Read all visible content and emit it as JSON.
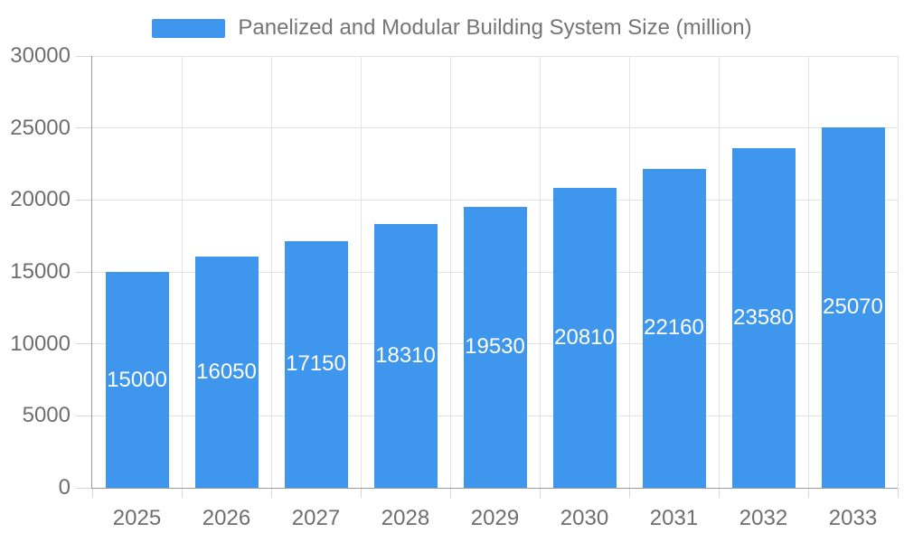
{
  "chart_data": {
    "type": "bar",
    "series_name": "Panelized and Modular Building System Size (million)",
    "categories": [
      "2025",
      "2026",
      "2027",
      "2028",
      "2029",
      "2030",
      "2031",
      "2032",
      "2033"
    ],
    "values": [
      15000,
      16050,
      17150,
      18310,
      19530,
      20810,
      22160,
      23580,
      25070
    ],
    "bar_labels": [
      "15000",
      "16050",
      "17150",
      "18310",
      "19530",
      "20810",
      "22160",
      "23580",
      "25070"
    ],
    "ylim": [
      0,
      30000
    ],
    "yticks": [
      0,
      5000,
      10000,
      15000,
      20000,
      25000,
      30000
    ],
    "ytick_labels": [
      "0",
      "5000",
      "10000",
      "15000",
      "20000",
      "25000",
      "30000"
    ],
    "legend_position": "top",
    "grid": true,
    "bar_label_position": "inside-center",
    "colors": {
      "bar": "#3e97ec",
      "bar_label_text": "#ffffff",
      "axis_text": "#6e6e6e",
      "legend_text": "#757575",
      "axis_line": "#9a9a9a",
      "gridline": "#e3e3e3",
      "tick": "#d6d6d6",
      "background": "#ffffff"
    }
  }
}
